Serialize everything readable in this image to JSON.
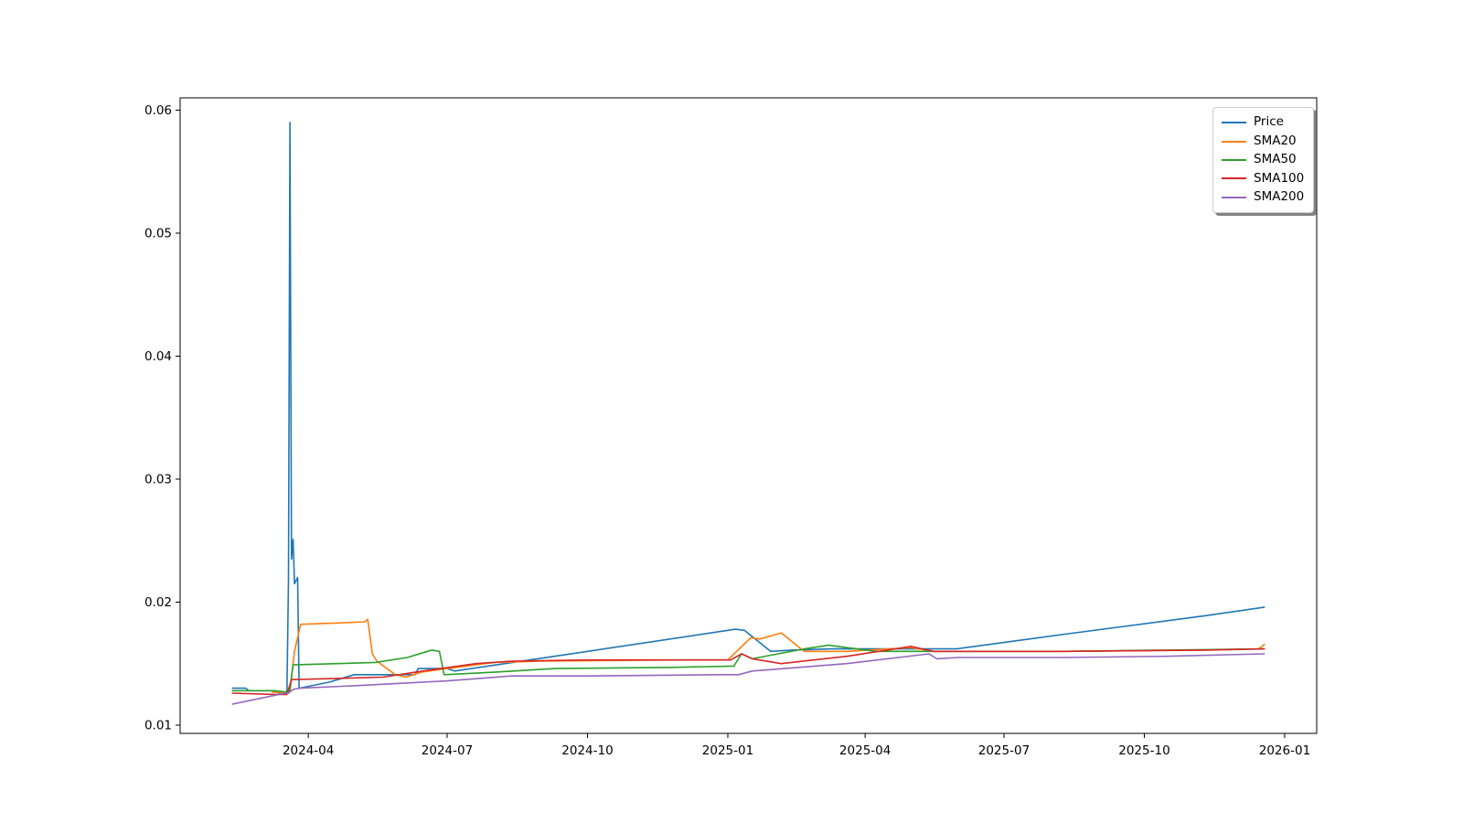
{
  "figure": {
    "background": "#ffffff"
  },
  "chart_data": {
    "type": "line",
    "title": "",
    "xlabel": "",
    "ylabel": "",
    "grid": false,
    "axis_color": "#000000",
    "xlim": [
      "2024-01-08",
      "2026-01-22"
    ],
    "ylim": [
      0.00933,
      0.061
    ],
    "x_tick_dates": [
      "2024-04-01",
      "2024-07-01",
      "2024-10-01",
      "2025-01-01",
      "2025-04-01",
      "2025-07-01",
      "2025-10-01",
      "2026-01-01"
    ],
    "x_tick_labels": [
      "2024-04",
      "2024-07",
      "2024-10",
      "2025-01",
      "2025-04",
      "2025-07",
      "2025-10",
      "2026-01"
    ],
    "y_ticks": [
      0.01,
      0.02,
      0.03,
      0.04,
      0.05,
      0.06
    ],
    "y_tick_labels": [
      "0.01",
      "0.02",
      "0.03",
      "0.04",
      "0.05",
      "0.06"
    ],
    "legend": {
      "position": "upper right",
      "fancybox": true,
      "shadow": true
    },
    "series": [
      {
        "name": "Price",
        "color": "#1f77b4",
        "points": [
          [
            "2024-02-11",
            0.013
          ],
          [
            "2024-02-20",
            0.013
          ],
          [
            "2024-02-22",
            0.0128
          ],
          [
            "2024-03-09",
            0.0128
          ],
          [
            "2024-03-13",
            0.0126
          ],
          [
            "2024-03-17",
            0.0127
          ],
          [
            "2024-03-18",
            0.0127
          ],
          [
            "2024-03-19",
            0.0218
          ],
          [
            "2024-03-20",
            0.059
          ],
          [
            "2024-03-21",
            0.0235
          ],
          [
            "2024-03-22",
            0.0251
          ],
          [
            "2024-03-23",
            0.0215
          ],
          [
            "2024-03-25",
            0.022
          ],
          [
            "2024-03-26",
            0.013
          ],
          [
            "2024-04-15",
            0.0135
          ],
          [
            "2024-05-01",
            0.0141
          ],
          [
            "2024-06-10",
            0.0141
          ],
          [
            "2024-06-12",
            0.0146
          ],
          [
            "2024-07-01",
            0.0146
          ],
          [
            "2024-07-06",
            0.0144
          ],
          [
            "2024-09-15",
            0.0157
          ],
          [
            "2025-01-06",
            0.0178
          ],
          [
            "2025-01-12",
            0.0177
          ],
          [
            "2025-01-29",
            0.016
          ],
          [
            "2025-02-12",
            0.0161
          ],
          [
            "2025-03-10",
            0.0162
          ],
          [
            "2025-04-20",
            0.0162
          ],
          [
            "2025-05-31",
            0.0162
          ],
          [
            "2025-08-10",
            0.0174
          ],
          [
            "2025-11-10",
            0.0189
          ],
          [
            "2025-12-19",
            0.0196
          ]
        ]
      },
      {
        "name": "SMA20",
        "color": "#ff7f0e",
        "points": [
          [
            "2024-03-08",
            0.0127
          ],
          [
            "2024-03-18",
            0.0126
          ],
          [
            "2024-03-20",
            0.0129
          ],
          [
            "2024-03-23",
            0.016
          ],
          [
            "2024-03-27",
            0.0182
          ],
          [
            "2024-04-20",
            0.0183
          ],
          [
            "2024-05-08",
            0.0184
          ],
          [
            "2024-05-10",
            0.0186
          ],
          [
            "2024-05-13",
            0.0158
          ],
          [
            "2024-05-16",
            0.0152
          ],
          [
            "2024-05-28",
            0.0141
          ],
          [
            "2024-06-04",
            0.0139
          ],
          [
            "2024-06-14",
            0.0143
          ],
          [
            "2024-07-01",
            0.0146
          ],
          [
            "2024-08-01",
            0.0151
          ],
          [
            "2024-09-01",
            0.0152
          ],
          [
            "2024-12-01",
            0.0153
          ],
          [
            "2025-01-01",
            0.0153
          ],
          [
            "2025-01-16",
            0.0171
          ],
          [
            "2025-01-22",
            0.017
          ],
          [
            "2025-02-05",
            0.0175
          ],
          [
            "2025-02-20",
            0.016
          ],
          [
            "2025-03-20",
            0.016
          ],
          [
            "2025-05-01",
            0.0163
          ],
          [
            "2025-05-16",
            0.016
          ],
          [
            "2025-08-10",
            0.016
          ],
          [
            "2025-11-10",
            0.0161
          ],
          [
            "2025-12-15",
            0.0162
          ],
          [
            "2025-12-19",
            0.0166
          ]
        ]
      },
      {
        "name": "SMA50",
        "color": "#2ca02c",
        "points": [
          [
            "2024-02-11",
            0.0128
          ],
          [
            "2024-03-10",
            0.0128
          ],
          [
            "2024-03-17",
            0.0127
          ],
          [
            "2024-03-20",
            0.0128
          ],
          [
            "2024-03-22",
            0.0149
          ],
          [
            "2024-04-20",
            0.015
          ],
          [
            "2024-05-15",
            0.0151
          ],
          [
            "2024-06-05",
            0.0155
          ],
          [
            "2024-06-18",
            0.016
          ],
          [
            "2024-06-21",
            0.0161
          ],
          [
            "2024-06-26",
            0.016
          ],
          [
            "2024-06-29",
            0.0141
          ],
          [
            "2024-08-01",
            0.0143
          ],
          [
            "2024-09-10",
            0.0146
          ],
          [
            "2024-11-26",
            0.0147
          ],
          [
            "2025-01-05",
            0.0148
          ],
          [
            "2025-01-10",
            0.0158
          ],
          [
            "2025-01-17",
            0.0154
          ],
          [
            "2025-02-20",
            0.0162
          ],
          [
            "2025-03-08",
            0.0165
          ],
          [
            "2025-04-08",
            0.016
          ],
          [
            "2025-05-16",
            0.016
          ],
          [
            "2025-08-10",
            0.016
          ],
          [
            "2025-12-19",
            0.0162
          ]
        ]
      },
      {
        "name": "SMA100",
        "color": "#d62728",
        "points": [
          [
            "2024-02-11",
            0.0126
          ],
          [
            "2024-03-10",
            0.0125
          ],
          [
            "2024-03-18",
            0.0125
          ],
          [
            "2024-03-21",
            0.0137
          ],
          [
            "2024-04-20",
            0.0138
          ],
          [
            "2024-05-20",
            0.0139
          ],
          [
            "2024-06-15",
            0.0144
          ],
          [
            "2024-07-20",
            0.015
          ],
          [
            "2024-08-12",
            0.0152
          ],
          [
            "2024-10-01",
            0.0153
          ],
          [
            "2025-01-03",
            0.0153
          ],
          [
            "2025-01-10",
            0.0158
          ],
          [
            "2025-01-17",
            0.0154
          ],
          [
            "2025-02-05",
            0.015
          ],
          [
            "2025-03-20",
            0.0156
          ],
          [
            "2025-05-01",
            0.0164
          ],
          [
            "2025-05-16",
            0.016
          ],
          [
            "2025-08-10",
            0.016
          ],
          [
            "2025-11-10",
            0.0161
          ],
          [
            "2025-12-19",
            0.0162
          ]
        ]
      },
      {
        "name": "SMA200",
        "color": "#9467bd",
        "points": [
          [
            "2024-02-11",
            0.0117
          ],
          [
            "2024-03-17",
            0.0126
          ],
          [
            "2024-03-19",
            0.0126
          ],
          [
            "2024-03-22",
            0.0129
          ],
          [
            "2024-03-26",
            0.013
          ],
          [
            "2024-05-01",
            0.0132
          ],
          [
            "2024-07-01",
            0.0136
          ],
          [
            "2024-08-12",
            0.014
          ],
          [
            "2024-10-01",
            0.014
          ],
          [
            "2024-12-26",
            0.0141
          ],
          [
            "2025-01-08",
            0.0141
          ],
          [
            "2025-01-17",
            0.0144
          ],
          [
            "2025-03-20",
            0.015
          ],
          [
            "2025-05-13",
            0.0158
          ],
          [
            "2025-05-18",
            0.0154
          ],
          [
            "2025-06-01",
            0.0155
          ],
          [
            "2025-08-10",
            0.0155
          ],
          [
            "2025-10-15",
            0.0156
          ],
          [
            "2025-12-19",
            0.0158
          ]
        ]
      }
    ]
  }
}
